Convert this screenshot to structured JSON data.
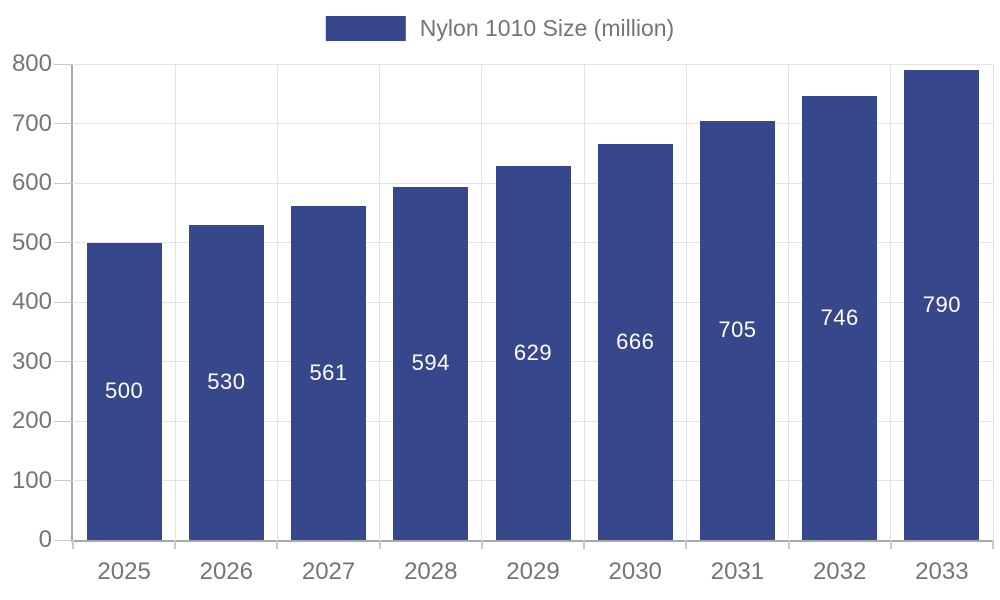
{
  "chart_data": {
    "type": "bar",
    "title": "",
    "series_name": "Nylon 1010 Size (million)",
    "categories": [
      "2025",
      "2026",
      "2027",
      "2028",
      "2029",
      "2030",
      "2031",
      "2032",
      "2033"
    ],
    "values": [
      500,
      530,
      561,
      594,
      629,
      666,
      705,
      746,
      790
    ],
    "xlabel": "",
    "ylabel": "",
    "ylim": [
      0,
      800
    ],
    "yticks": [
      0,
      100,
      200,
      300,
      400,
      500,
      600,
      700,
      800
    ],
    "grid": true,
    "legend_position": "top",
    "bar_value_labels_visible": true,
    "colors": {
      "bar": "#36478B",
      "bar_label_text": "#FFFFFF",
      "axis_text": "#757575",
      "axis_line": "#A8A8A8",
      "tick": "#C9C9C9",
      "grid_line": "#E3E3E5",
      "background": "#FFFFFF"
    }
  }
}
